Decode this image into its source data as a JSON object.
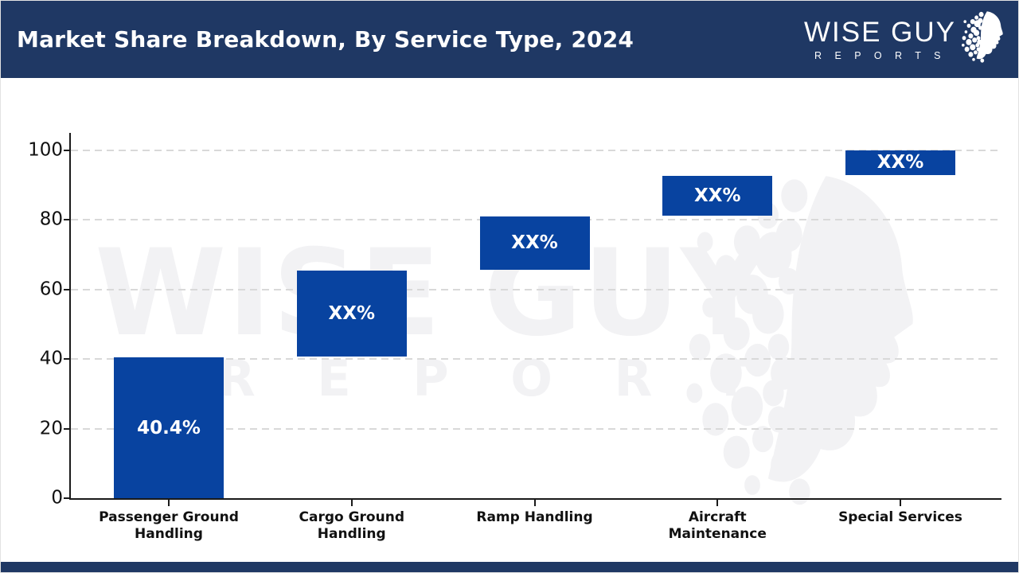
{
  "header": {
    "title": "Market Share Breakdown, By Service Type, 2024",
    "logo": {
      "line1": "WISE GUY",
      "line2": "R E P O R T S"
    }
  },
  "watermark": {
    "line1": "WISE GUY",
    "line2": "R E P O R T S"
  },
  "colors": {
    "header_navy": "#1f3864",
    "footer_navy": "#1f3864",
    "bar_blue": "#0843a0",
    "grid_gray": "#d9d9d9",
    "axis_black": "#1a1a1a",
    "watermark_gray": "#f2f2f4"
  },
  "chart_data": {
    "type": "bar",
    "subtype": "waterfall-floating-bars",
    "title": "Market Share Breakdown, By Service Type, 2024",
    "categories": [
      "Passenger Ground Handling",
      "Cargo Ground Handling",
      "Ramp Handling",
      "Aircraft Maintenance",
      "Special Services"
    ],
    "segments": [
      {
        "category": "Passenger Ground Handling",
        "label": "40.4%",
        "start": 0,
        "end": 40.4
      },
      {
        "category": "Cargo Ground Handling",
        "label": "XX%",
        "start": 40.6,
        "end": 65.4
      },
      {
        "category": "Ramp Handling",
        "label": "XX%",
        "start": 65.6,
        "end": 81.0
      },
      {
        "category": "Aircraft Maintenance",
        "label": "XX%",
        "start": 81.2,
        "end": 92.6
      },
      {
        "category": "Special Services",
        "label": "XX%",
        "start": 92.8,
        "end": 100
      }
    ],
    "yticks": [
      0,
      20,
      40,
      60,
      80,
      100
    ],
    "ylim": [
      0,
      105
    ],
    "xlabel": "",
    "ylabel": "",
    "grid": "horizontal-dashed",
    "legend": "none"
  }
}
